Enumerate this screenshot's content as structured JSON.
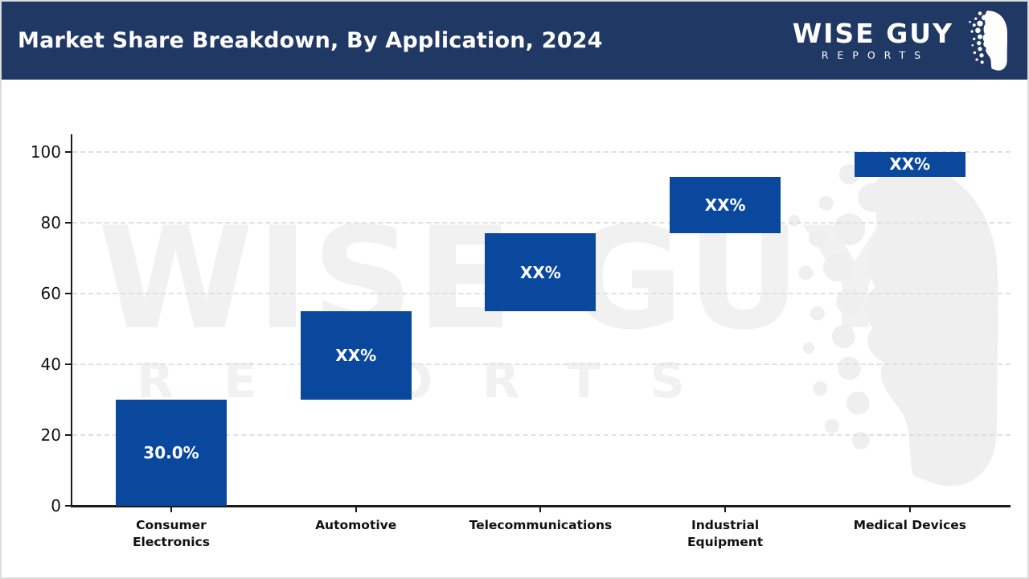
{
  "header": {
    "title": "Market Share Breakdown, By Application, 2024",
    "logo": {
      "line1": "WISE GUY",
      "line2": "REPORTS"
    }
  },
  "watermark": {
    "line1": "WISE GUY",
    "line2": "REPORTS"
  },
  "chart_data": {
    "type": "bar",
    "subtype": "waterfall",
    "title": "Market Share Breakdown, By Application, 2024",
    "categories": [
      "Consumer Electronics",
      "Automotive",
      "Telecommunications",
      "Industrial Equipment",
      "Medical Devices"
    ],
    "bars": [
      {
        "category": "Consumer Electronics",
        "start": 0,
        "end": 30,
        "label": "30.0%"
      },
      {
        "category": "Automotive",
        "start": 30,
        "end": 55,
        "label": "XX%"
      },
      {
        "category": "Telecommunications",
        "start": 55,
        "end": 77,
        "label": "XX%"
      },
      {
        "category": "Industrial Equipment",
        "start": 77,
        "end": 93,
        "label": "XX%"
      },
      {
        "category": "Medical Devices",
        "start": 93,
        "end": 100,
        "label": "XX%"
      }
    ],
    "ylim": [
      0,
      100
    ],
    "yticks": [
      0,
      20,
      40,
      60,
      80,
      100
    ],
    "xlabel": "",
    "ylabel": "",
    "grid": "horizontal-dashed",
    "legend": "none",
    "colors": {
      "bar": "#0a489e",
      "bar_label": "#ffffff",
      "header_bg": "#203864",
      "axis": "#1a1a1a",
      "gridline": "#e0e0e0",
      "tick_label": "#111111",
      "watermark": "#f1f1f1"
    }
  }
}
